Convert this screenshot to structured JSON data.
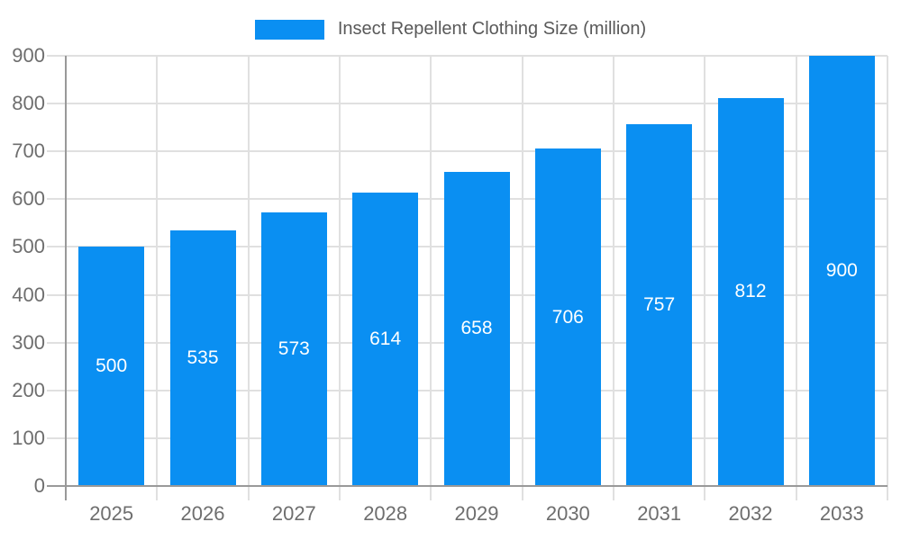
{
  "legend": {
    "label": "Insect Repellent Clothing Size (million)"
  },
  "colors": {
    "bar": "#0a8ff2",
    "grid": "#e0e0e0",
    "axis": "#999999",
    "axis_label": "#6e6e6e",
    "legend_text": "#595959",
    "value_label": "#ffffff",
    "background": "#ffffff"
  },
  "chart_data": {
    "type": "bar",
    "title": "Insect Repellent Clothing Size (million)",
    "categories": [
      "2025",
      "2026",
      "2027",
      "2028",
      "2029",
      "2030",
      "2031",
      "2032",
      "2033"
    ],
    "values": [
      500,
      535,
      573,
      614,
      658,
      706,
      757,
      812,
      900
    ],
    "xlabel": "",
    "ylabel": "",
    "ylim": [
      0,
      900
    ],
    "yticks": [
      0,
      100,
      200,
      300,
      400,
      500,
      600,
      700,
      800,
      900
    ],
    "grid": true,
    "legend_position": "top-center",
    "value_label_placement": "centered-inside-bars"
  }
}
